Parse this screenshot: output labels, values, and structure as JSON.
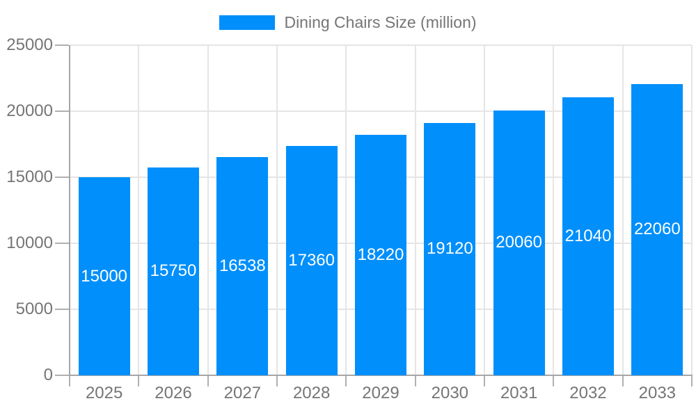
{
  "legend": {
    "label": "Dining Chairs Size (million)"
  },
  "chart_data": {
    "type": "bar",
    "title": "Dining Chairs Size (million)",
    "categories": [
      "2025",
      "2026",
      "2027",
      "2028",
      "2029",
      "2030",
      "2031",
      "2032",
      "2033"
    ],
    "values": [
      15000,
      15750,
      16538,
      17360,
      18220,
      19120,
      20060,
      21040,
      22060
    ],
    "xlabel": "",
    "ylabel": "",
    "ylim": [
      0,
      25000
    ],
    "y_ticks": [
      0,
      5000,
      10000,
      15000,
      20000,
      25000
    ],
    "grid": true,
    "legend_position": "top",
    "value_labels": "inside-middle",
    "colors": {
      "bar": "#008ffb",
      "grid": "#e5e5e5",
      "axis": "#a6a6a6",
      "tick": "#b0b0b0",
      "axis_label": "#757575",
      "value_label": "#ffffff",
      "background": "#ffffff"
    }
  }
}
